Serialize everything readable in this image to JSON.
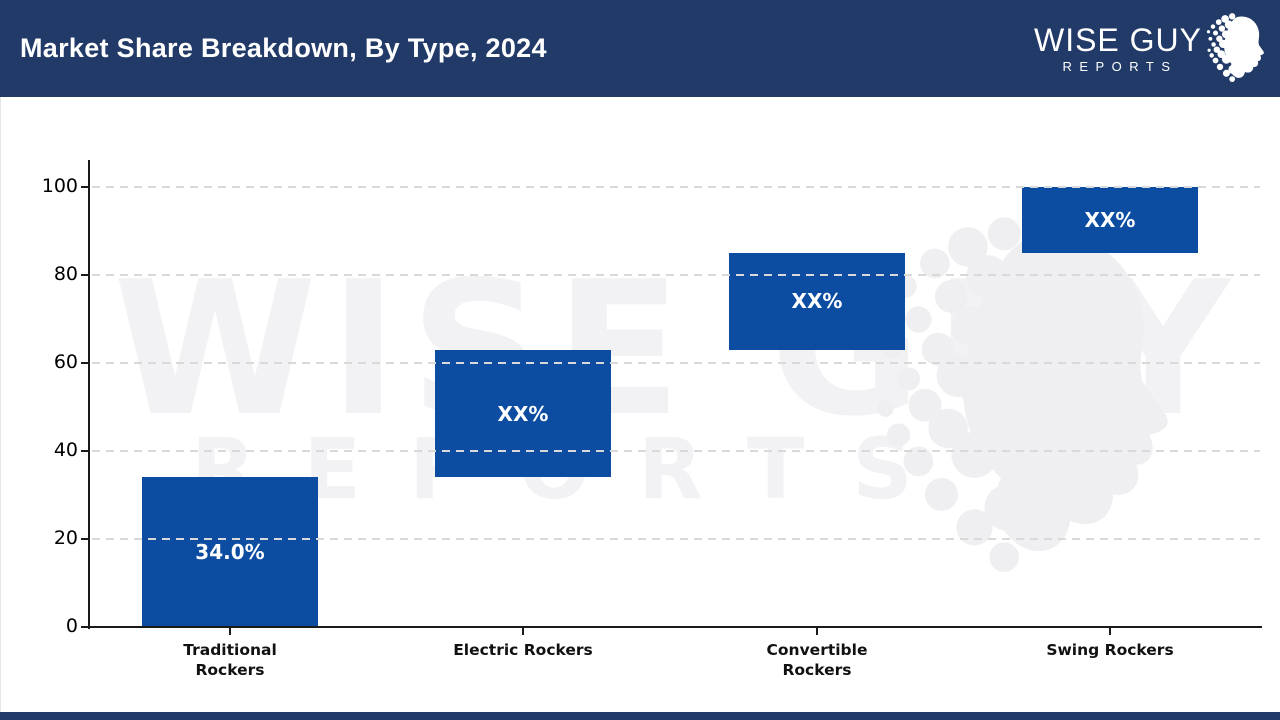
{
  "header": {
    "title": "Market Share Breakdown, By Type, 2024",
    "logo": {
      "line1": "WISE GUY",
      "line2": "REPORTS"
    }
  },
  "watermark": {
    "line1": "WISE GUY",
    "line2": "REPORTS"
  },
  "chart_data": {
    "type": "bar",
    "subtype": "waterfall",
    "title": "Market Share Breakdown, By Type, 2024",
    "xlabel": "",
    "ylabel": "",
    "ylim": [
      0,
      100
    ],
    "yticks": [
      0,
      20,
      40,
      60,
      80,
      100
    ],
    "grid": "horizontal-dashed",
    "legend": "none",
    "categories": [
      "Traditional Rockers",
      "Electric Rockers",
      "Convertible Rockers",
      "Swing Rockers"
    ],
    "category_display_lines": [
      [
        "Traditional",
        "Rockers"
      ],
      [
        "Electric Rockers"
      ],
      [
        "Convertible",
        "Rockers"
      ],
      [
        "Swing Rockers"
      ]
    ],
    "segments": [
      {
        "category": "Traditional Rockers",
        "start": 0,
        "end": 34,
        "value": 34,
        "shown_label": "34.0%"
      },
      {
        "category": "Electric Rockers",
        "start": 34,
        "end": 63,
        "value": 29,
        "shown_label": "XX%"
      },
      {
        "category": "Convertible Rockers",
        "start": 63,
        "end": 85,
        "value": 22,
        "shown_label": "XX%"
      },
      {
        "category": "Swing Rockers",
        "start": 85,
        "end": 100,
        "value": 15,
        "shown_label": "XX%"
      }
    ],
    "bar_color": "#0d4da1",
    "bar_label_color": "#ffffff"
  },
  "colors": {
    "header_bg": "#213a68",
    "footer_bg": "#213a68",
    "bar": "#0d4da1",
    "grid": "#d9d9d9",
    "axis": "#1a1a1a",
    "watermark": "#f2f2f5"
  }
}
